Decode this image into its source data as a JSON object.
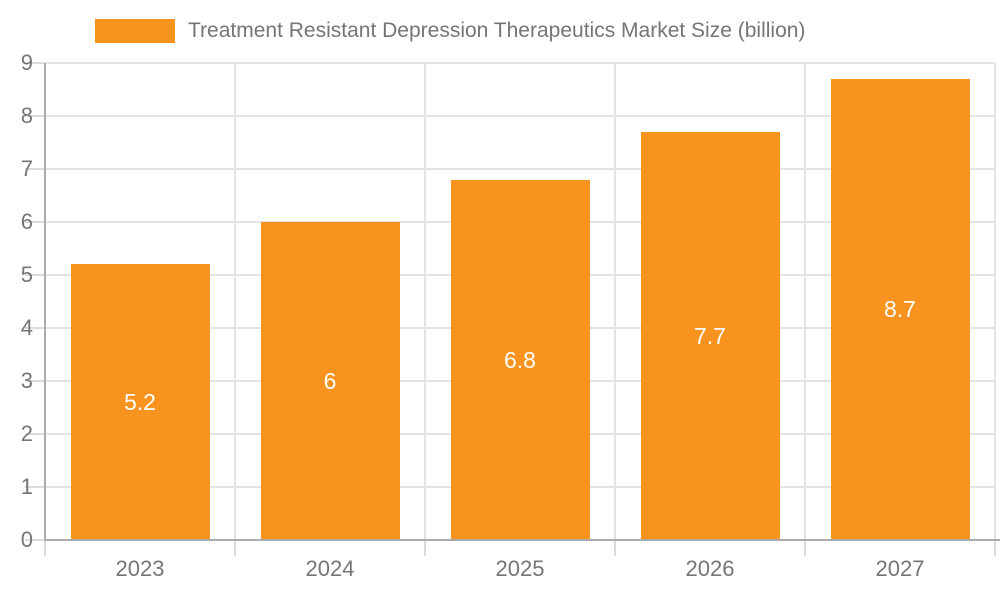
{
  "chart_data": {
    "type": "bar",
    "title": "",
    "series_name": "Treatment Resistant Depression Therapeutics Market Size (billion)",
    "categories": [
      "2023",
      "2024",
      "2025",
      "2026",
      "2027"
    ],
    "values": [
      5.2,
      6,
      6.8,
      7.7,
      8.7
    ],
    "value_labels": [
      "5.2",
      "6",
      "6.8",
      "7.7",
      "8.7"
    ],
    "xlabel": "",
    "ylabel": "",
    "ylim": [
      0,
      9
    ],
    "ytick_interval": 1,
    "yticks": [
      0,
      1,
      2,
      3,
      4,
      5,
      6,
      7,
      8,
      9
    ],
    "grid": true,
    "legend_position": "top-left",
    "colors": {
      "bar": "#F7931E",
      "value_label_text": "#FFFFFF",
      "axis_line": "#ABABAB",
      "gridline": "#E4E4E4",
      "tick": "#DCDCDC",
      "axis_text": "#757575",
      "legend_text": "#757575",
      "background": "#FFFFFF"
    }
  }
}
